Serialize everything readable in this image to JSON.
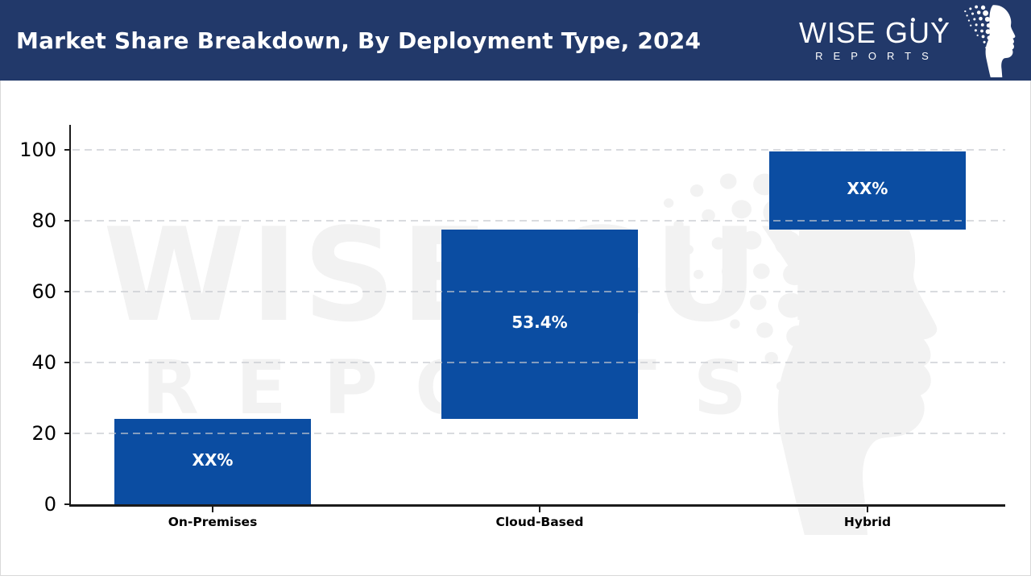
{
  "header": {
    "title": "Market Share Breakdown, By Deployment Type, 2024",
    "brand": {
      "name": "WISE GUY",
      "sub": "REPORTS"
    }
  },
  "watermark": {
    "big": "WISE GUY",
    "sub": "REPORTS"
  },
  "colors": {
    "header_bg": "#22396a",
    "bar": "#0b4da2",
    "bar_label": "#ffffff",
    "watermark": "#f2f2f2"
  },
  "chart_data": {
    "type": "bar",
    "subtype": "waterfall-floating-bars",
    "title": "Market Share Breakdown, By Deployment Type, 2024",
    "xlabel": "",
    "ylabel": "",
    "ylim": [
      0,
      105
    ],
    "yticks": [
      0,
      20,
      40,
      60,
      80,
      100
    ],
    "grid": "horizontal-dashed",
    "legend": "none",
    "bar_color": "#0b4da2",
    "bar_label_color": "#ffffff",
    "categories": [
      "On-Premises",
      "Cloud-Based",
      "Hybrid"
    ],
    "bars": [
      {
        "category": "On-Premises",
        "start": 0,
        "end": 24.2,
        "label": "XX%"
      },
      {
        "category": "Cloud-Based",
        "start": 24.2,
        "end": 77.6,
        "label": "53.4%"
      },
      {
        "category": "Hybrid",
        "start": 77.6,
        "end": 99.6,
        "label": "XX%"
      }
    ]
  }
}
